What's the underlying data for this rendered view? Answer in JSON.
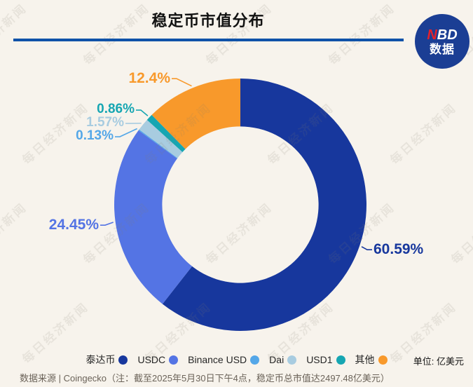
{
  "page": {
    "title": "稳定币市值分布",
    "watermark_text": "每日经济新闻",
    "background_color": "#f7f3ec",
    "divider_color": "#0f52a8"
  },
  "logo": {
    "brand_red": "N",
    "brand_rest": "BD",
    "subtitle": "数据",
    "bg_color": "#1b3e94",
    "accent_color": "#e62129"
  },
  "chart_data": {
    "type": "pie",
    "subtype": "donut",
    "title": "稳定币市值分布",
    "unit_label": "单位: 亿美元",
    "start_angle_deg": 0,
    "direction": "clockwise",
    "inner_radius_ratio": 0.62,
    "total_pct": 100,
    "segments": [
      {
        "name": "泰达币",
        "value_pct": 60.59,
        "label": "60.59%",
        "color": "#17379d"
      },
      {
        "name": "USDC",
        "value_pct": 24.45,
        "label": "24.45%",
        "color": "#5474e4"
      },
      {
        "name": "Binance USD",
        "value_pct": 0.13,
        "label": "0.13%",
        "color": "#54a7e8"
      },
      {
        "name": "Dai",
        "value_pct": 1.57,
        "label": "1.57%",
        "color": "#a8cce0"
      },
      {
        "name": "USD1",
        "value_pct": 0.86,
        "label": "0.86%",
        "color": "#16a6b2"
      },
      {
        "name": "其他",
        "value_pct": 12.4,
        "label": "12.4%",
        "color": "#f8992b"
      }
    ]
  },
  "footer": {
    "text": "数据来源 | Coingecko（注：截至2025年5月30日下午4点，稳定币总市值达2497.48亿美元）"
  }
}
